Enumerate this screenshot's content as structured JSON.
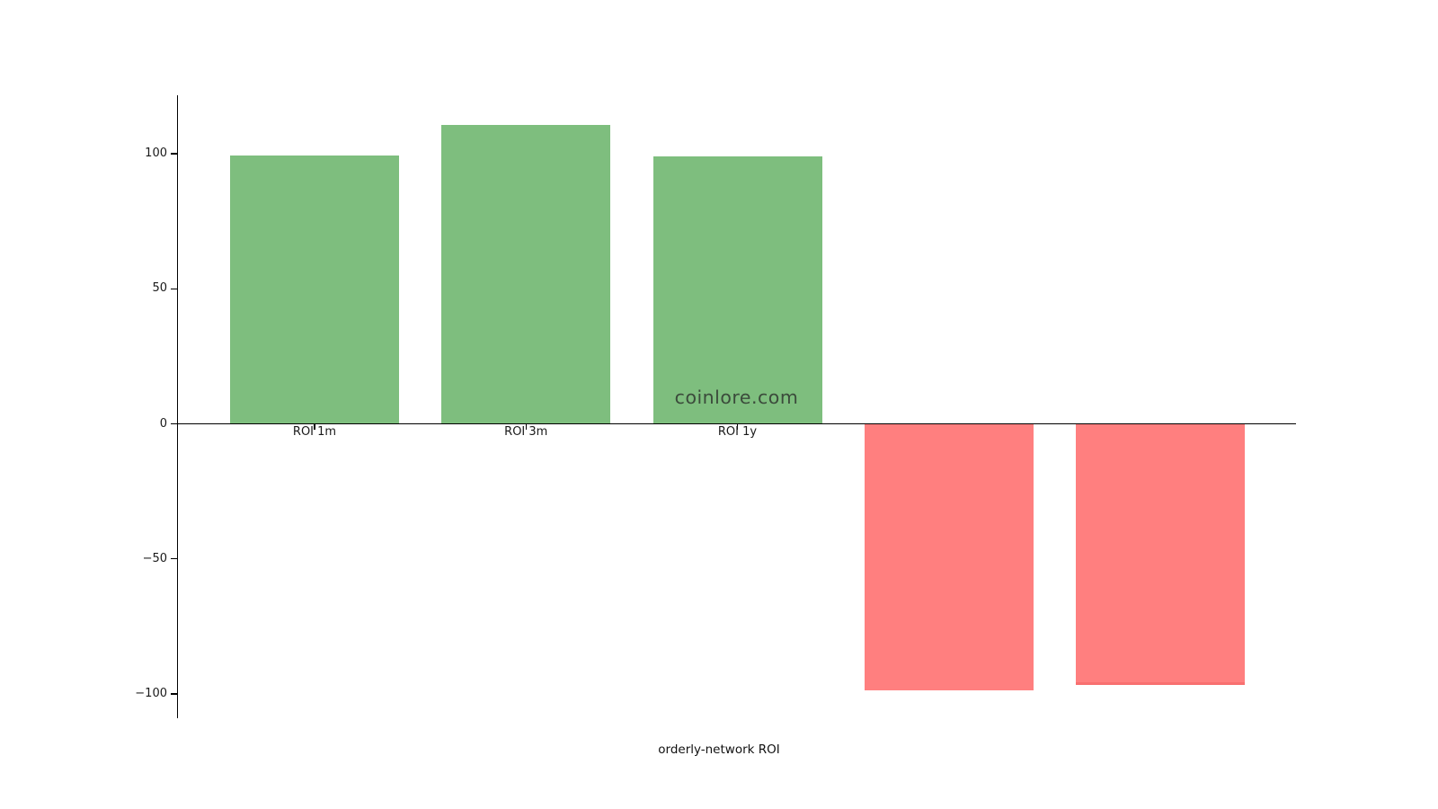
{
  "chart_data": {
    "type": "bar",
    "title": "orderly-network ROI",
    "xlabel": "orderly-network ROI",
    "ylabel": "",
    "categories": [
      "ROI 1m",
      "ROI 3m",
      "ROI 1y",
      "",
      ""
    ],
    "values": [
      99.5,
      110.8,
      99.0,
      -98.9,
      -96.7
    ],
    "bar_colors": [
      "#7ebe7e",
      "#7ebe7e",
      "#7ebe7e",
      "#ff7f7f",
      "#ff7f7f"
    ],
    "negative_overlay": {
      "bar_index": 4,
      "from": -95.9,
      "to": -96.7,
      "color": "#f87070"
    },
    "yticks": [
      100,
      50,
      0,
      -50,
      -100
    ],
    "ytick_labels": [
      "100",
      "50",
      "0",
      "−50",
      "−100"
    ],
    "ylim": [
      -109,
      122
    ],
    "grid": false,
    "legend": null,
    "watermark": "coinlore.com",
    "colors": {
      "positive": "#7ebe7e",
      "negative": "#ff7f7f",
      "negative_overlap": "#f87070",
      "axis": "#000000",
      "text": "#1a1a1a"
    }
  }
}
